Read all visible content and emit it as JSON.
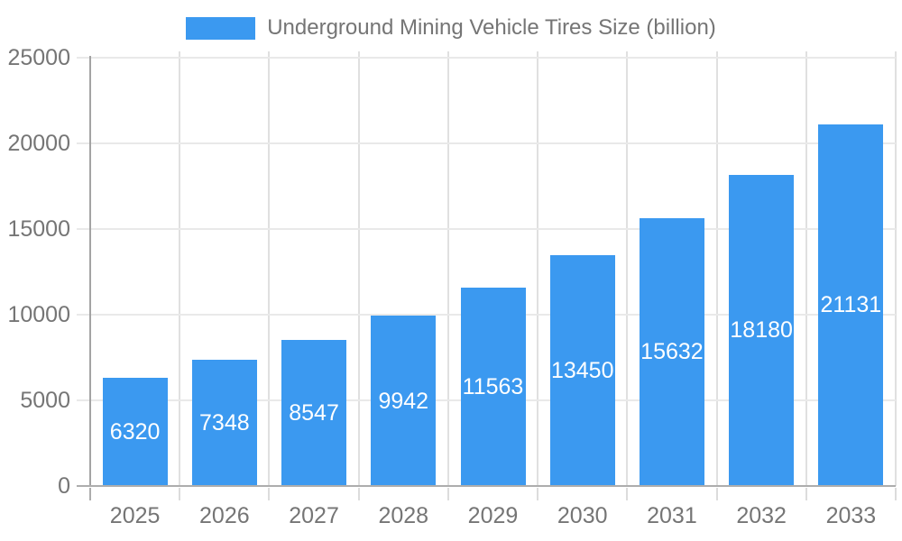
{
  "legend": {
    "label": "Underground Mining Vehicle Tires Size (billion)"
  },
  "chart_data": {
    "type": "bar",
    "title": "Underground Mining Vehicle Tires Size (billion)",
    "categories": [
      "2025",
      "2026",
      "2027",
      "2028",
      "2029",
      "2030",
      "2031",
      "2032",
      "2033"
    ],
    "series": [
      {
        "name": "Underground Mining Vehicle Tires Size (billion)",
        "values": [
          6320,
          7348,
          8547,
          9942,
          11563,
          13450,
          15632,
          18180,
          21131
        ]
      }
    ],
    "xlabel": "",
    "ylabel": "",
    "ylim": [
      0,
      25000
    ],
    "yticks": [
      0,
      5000,
      10000,
      15000,
      20000,
      25000
    ],
    "grid": true,
    "legend_position": "top",
    "bar_labels_inside": true,
    "colors": {
      "bar": "#3B99F0",
      "axis_text": "#757575",
      "bar_label_text": "#FFFFFF",
      "grid_horizontal": "#E9E9E9",
      "grid_vertical": "#E0E0E0",
      "axis_line": "#A3A3A3",
      "baseline": "#ADADAD",
      "tick": "#DCDCDC",
      "background": "#FFFFFF"
    }
  }
}
